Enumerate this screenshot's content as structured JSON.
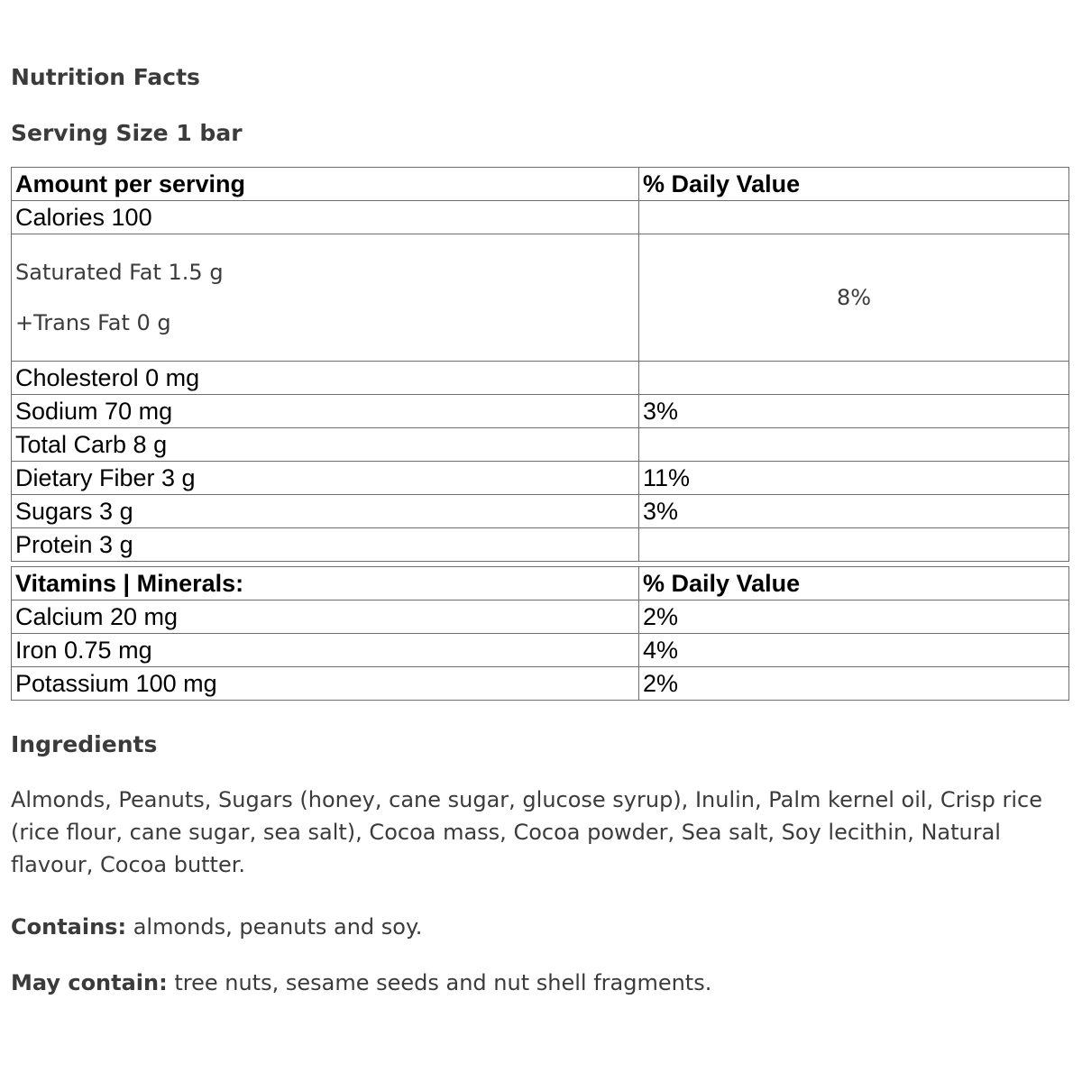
{
  "page": {
    "title": "Nutrition Facts",
    "serving_size": "Serving Size 1 bar"
  },
  "colors": {
    "body_text": "#3b3b3b",
    "table_text": "#000000",
    "table_border": "#6e6e6e",
    "background": "#ffffff"
  },
  "nutrition_table": {
    "header": {
      "amount": "Amount per serving",
      "daily_value": "% Daily Value"
    },
    "rows": [
      {
        "label": "Calories 100",
        "dv": ""
      },
      {
        "lines": [
          "Saturated Fat 1.5 g",
          "+Trans Fat 0 g"
        ],
        "dv": "8%"
      },
      {
        "label": "Cholesterol 0 mg",
        "dv": ""
      },
      {
        "label": "Sodium 70 mg",
        "dv": "3%"
      },
      {
        "label": "Total Carb 8 g",
        "dv": ""
      },
      {
        "label": "Dietary Fiber 3 g",
        "dv": "11%"
      },
      {
        "label": "Sugars 3 g",
        "dv": "3%"
      },
      {
        "label": "Protein 3 g",
        "dv": ""
      }
    ]
  },
  "vitamins_table": {
    "header": {
      "label": "Vitamins | Minerals:",
      "daily_value": "% Daily Value"
    },
    "rows": [
      {
        "label": "Calcium 20 mg",
        "dv": "2%"
      },
      {
        "label": "Iron 0.75 mg",
        "dv": "4%"
      },
      {
        "label": "Potassium 100 mg",
        "dv": "2%"
      }
    ]
  },
  "ingredients": {
    "heading": "Ingredients",
    "text": "Almonds, Peanuts, Sugars (honey, cane sugar, glucose syrup), Inulin, Palm kernel oil, Crisp rice (rice flour, cane sugar, sea salt), Cocoa mass, Cocoa powder, Sea salt, Soy lecithin, Natural flavour, Cocoa butter."
  },
  "contains": {
    "label": "Contains:",
    "text": " almonds, peanuts and soy."
  },
  "may_contain": {
    "label": "May contain:",
    "text": " tree nuts, sesame seeds and nut shell fragments."
  }
}
